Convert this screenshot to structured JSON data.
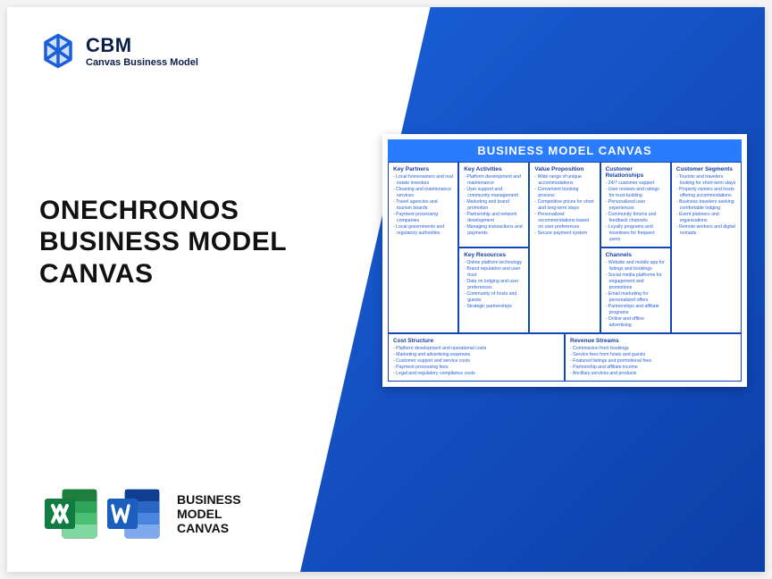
{
  "logo": {
    "abbrev": "CBM",
    "full": "Canvas Business Model"
  },
  "headline": {
    "l1": "ONECHRONOS",
    "l2": "BUSINESS MODEL",
    "l3": "CANVAS"
  },
  "bottom_label": {
    "l1": "BUSINESS",
    "l2": "MODEL",
    "l3": "CANVAS"
  },
  "canvas": {
    "title": "BUSINESS MODEL CANVAS",
    "cells": {
      "kp": {
        "h": "Key Partners",
        "items": [
          "Local homeowners and real estate investors",
          "Cleaning and maintenance services",
          "Travel agencies and tourism boards",
          "Payment processing companies",
          "Local governments and regulatory authorities"
        ]
      },
      "ka": {
        "h": "Key Activities",
        "items": [
          "Platform development and maintenance",
          "User support and community management",
          "Marketing and brand promotion",
          "Partnership and network development",
          "Managing transactions and payments"
        ]
      },
      "vp": {
        "h": "Value Proposition",
        "items": [
          "Wide range of unique accommodations",
          "Convenient booking process",
          "Competitive prices for short and long-term stays",
          "Personalized recommendations based on user preferences",
          "Secure payment system"
        ]
      },
      "cr": {
        "h": "Customer Relationships",
        "items": [
          "24/7 customer support",
          "User reviews and ratings for trust-building",
          "Personalized user experiences",
          "Community forums and feedback channels",
          "Loyalty programs and incentives for frequent users"
        ]
      },
      "cs": {
        "h": "Customer Segments",
        "items": [
          "Tourists and travelers looking for short-term stays",
          "Property owners and hosts offering accommodations",
          "Business travelers seeking comfortable lodging",
          "Event planners and organizations",
          "Remote workers and digital nomads"
        ]
      },
      "kr": {
        "h": "Key Resources",
        "items": [
          "Online platform technology",
          "Brand reputation and user trust",
          "Data on lodging and user preferences",
          "Community of hosts and guests",
          "Strategic partnerships"
        ]
      },
      "ch": {
        "h": "Channels",
        "items": [
          "Website and mobile app for listings and bookings",
          "Social media platforms for engagement and promotions",
          "Email marketing for personalized offers",
          "Partnerships and affiliate programs",
          "Online and offline advertising"
        ]
      },
      "cost": {
        "h": "Cost Structure",
        "items": [
          "Platform development and operational costs",
          "Marketing and advertising expenses",
          "Customer support and service costs",
          "Payment processing fees",
          "Legal and regulatory compliance costs"
        ]
      },
      "rev": {
        "h": "Revenue Streams",
        "items": [
          "Commission from bookings",
          "Service fees from hosts and guests",
          "Featured listings and promotional fees",
          "Partnership and affiliate income",
          "Ancillary services and products"
        ]
      }
    }
  },
  "colors": {
    "accent": "#1a5fd8",
    "excel": "#1e7e3e",
    "word": "#1b5ebe"
  }
}
